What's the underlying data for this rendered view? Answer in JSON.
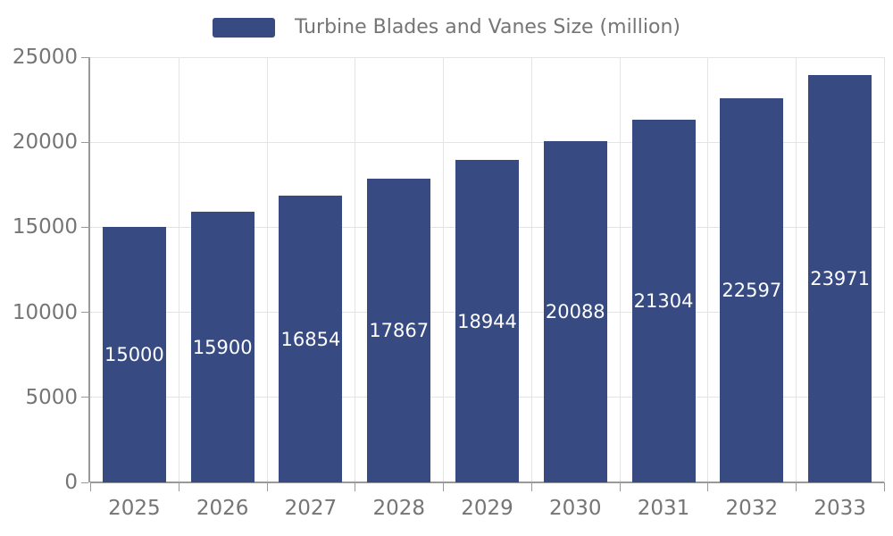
{
  "legend": {
    "label": "Turbine Blades and Vanes Size (million)"
  },
  "chart_data": {
    "type": "bar",
    "title": "Turbine Blades and Vanes Size (million)",
    "categories": [
      "2025",
      "2026",
      "2027",
      "2028",
      "2029",
      "2030",
      "2031",
      "2032",
      "2033"
    ],
    "series": [
      {
        "name": "Turbine Blades and Vanes Size (million)",
        "values": [
          15000,
          15900,
          16854,
          17867,
          18944,
          20088,
          21304,
          22597,
          23971
        ]
      }
    ],
    "xlabel": "",
    "ylabel": "",
    "ylim": [
      0,
      25000
    ],
    "yticks": [
      0,
      5000,
      10000,
      15000,
      20000,
      25000
    ],
    "grid": true,
    "legend_position": "top-center",
    "value_labels": "inside-center"
  },
  "style": {
    "bar_color": "#374B82",
    "bar_label_color": "#FFFFFF",
    "axis_color": "#999999",
    "grid_color": "#E4E4E4",
    "tick_label_color": "#757575",
    "legend_text_color": "#757575",
    "background": "#FFFFFF"
  }
}
